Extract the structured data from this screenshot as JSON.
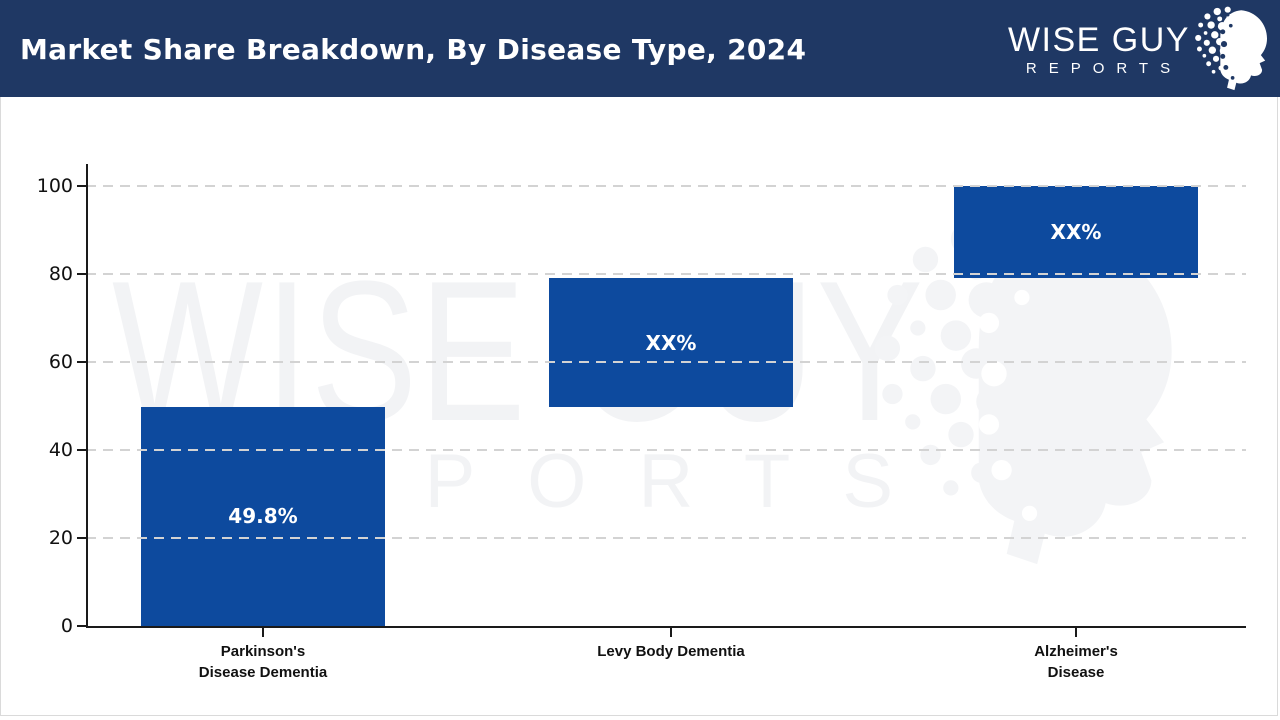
{
  "header": {
    "title": "Market Share Breakdown, By Disease Type, 2024",
    "background_color": "#1f3864",
    "logo": {
      "wordmark": "WISE GUY",
      "subtext": "REPORTS"
    }
  },
  "watermark": {
    "line1": "WISE GUY",
    "line2": "REPORTS"
  },
  "chart_data": {
    "type": "bar",
    "variant": "floating-waterfall",
    "title": "Market Share Breakdown, By Disease Type, 2024",
    "categories": [
      [
        "Parkinson's",
        "Disease Dementia"
      ],
      [
        "Levy Body Dementia"
      ],
      [
        "Alzheimer's",
        "Disease"
      ]
    ],
    "bars": [
      {
        "category": "Parkinson's Disease Dementia",
        "start": 0,
        "end": 49.8,
        "label": "49.8%"
      },
      {
        "category": "Levy Body Dementia",
        "start": 49.8,
        "end": 79,
        "label": "XX%"
      },
      {
        "category": "Alzheimer's Disease",
        "start": 79,
        "end": 100,
        "label": "XX%"
      }
    ],
    "xlabel": "",
    "ylabel": "",
    "ylim": [
      0,
      100
    ],
    "yticks": [
      0,
      20,
      40,
      60,
      80,
      100
    ],
    "grid": "horizontal-dashed",
    "legend": "none",
    "bar_color": "#0d4a9e",
    "bar_label_color": "#ffffff",
    "axis_color": "#1a1a1a",
    "gridline_color": "#d3d3d3"
  }
}
